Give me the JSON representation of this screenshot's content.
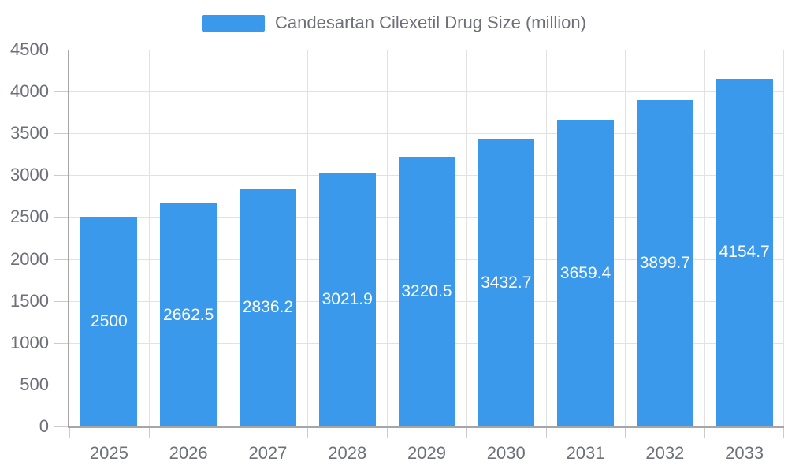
{
  "legend": {
    "label": "Candesartan Cilexetil Drug Size (million)"
  },
  "chart_data": {
    "type": "bar",
    "title": "Candesartan Cilexetil Drug Size (million)",
    "categories": [
      "2025",
      "2026",
      "2027",
      "2028",
      "2029",
      "2030",
      "2031",
      "2032",
      "2033"
    ],
    "values": [
      2500,
      2662.5,
      2836.2,
      3021.9,
      3220.5,
      3432.7,
      3659.4,
      3899.7,
      4154.7
    ],
    "xlabel": "",
    "ylabel": "",
    "ylim": [
      0,
      4500
    ],
    "ytick_interval": 500,
    "yticks": [
      0,
      500,
      1000,
      1500,
      2000,
      2500,
      3000,
      3500,
      4000,
      4500
    ],
    "grid": true,
    "legend_position": "top",
    "value_labels_position": "inside-center"
  },
  "colors": {
    "bar": "#3B99EC",
    "value_label": "#FFFFFF",
    "axis_line": "#A6A6A6",
    "gridline": "#E2E2E2",
    "tick": "#CCCCCC",
    "text": "#6E7079",
    "background": "#FFFFFF"
  }
}
